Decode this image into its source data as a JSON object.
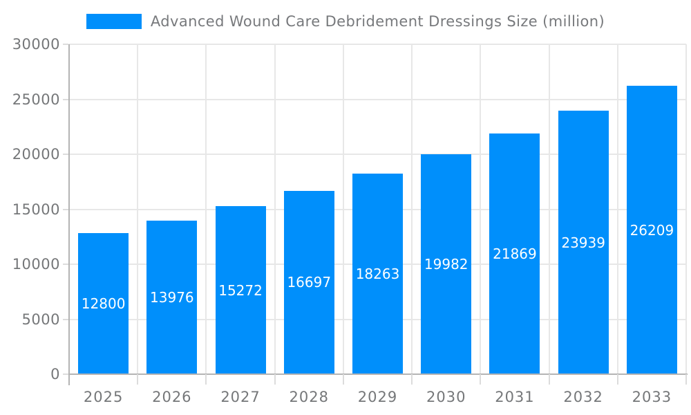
{
  "chart_data": {
    "type": "bar",
    "title": "Advanced Wound Care Debridement Dressings Size (million)",
    "legend": {
      "position": "top",
      "label": "Advanced Wound Care Debridement Dressings Size (million)"
    },
    "categories": [
      "2025",
      "2026",
      "2027",
      "2028",
      "2029",
      "2030",
      "2031",
      "2032",
      "2033"
    ],
    "series": [
      {
        "name": "Advanced Wound Care Debridement Dressings Size (million)",
        "values": [
          12800,
          13976,
          15272,
          16697,
          18263,
          19982,
          21869,
          23939,
          26209
        ]
      }
    ],
    "xlabel": "",
    "ylabel": "",
    "ylim": [
      0,
      30000
    ],
    "yticks": [
      0,
      5000,
      10000,
      15000,
      20000,
      25000,
      30000
    ],
    "grid": true,
    "value_labels": {
      "position": "inside-center",
      "color": "#ffffff"
    },
    "colors": {
      "bar": "#008FFB",
      "axis_text": "#757779",
      "legend_text": "#77797c",
      "gridline": "#e7e7e7",
      "axis_line": "#b4b4b4",
      "tick": "#dcdcdc",
      "background": "#ffffff"
    }
  }
}
